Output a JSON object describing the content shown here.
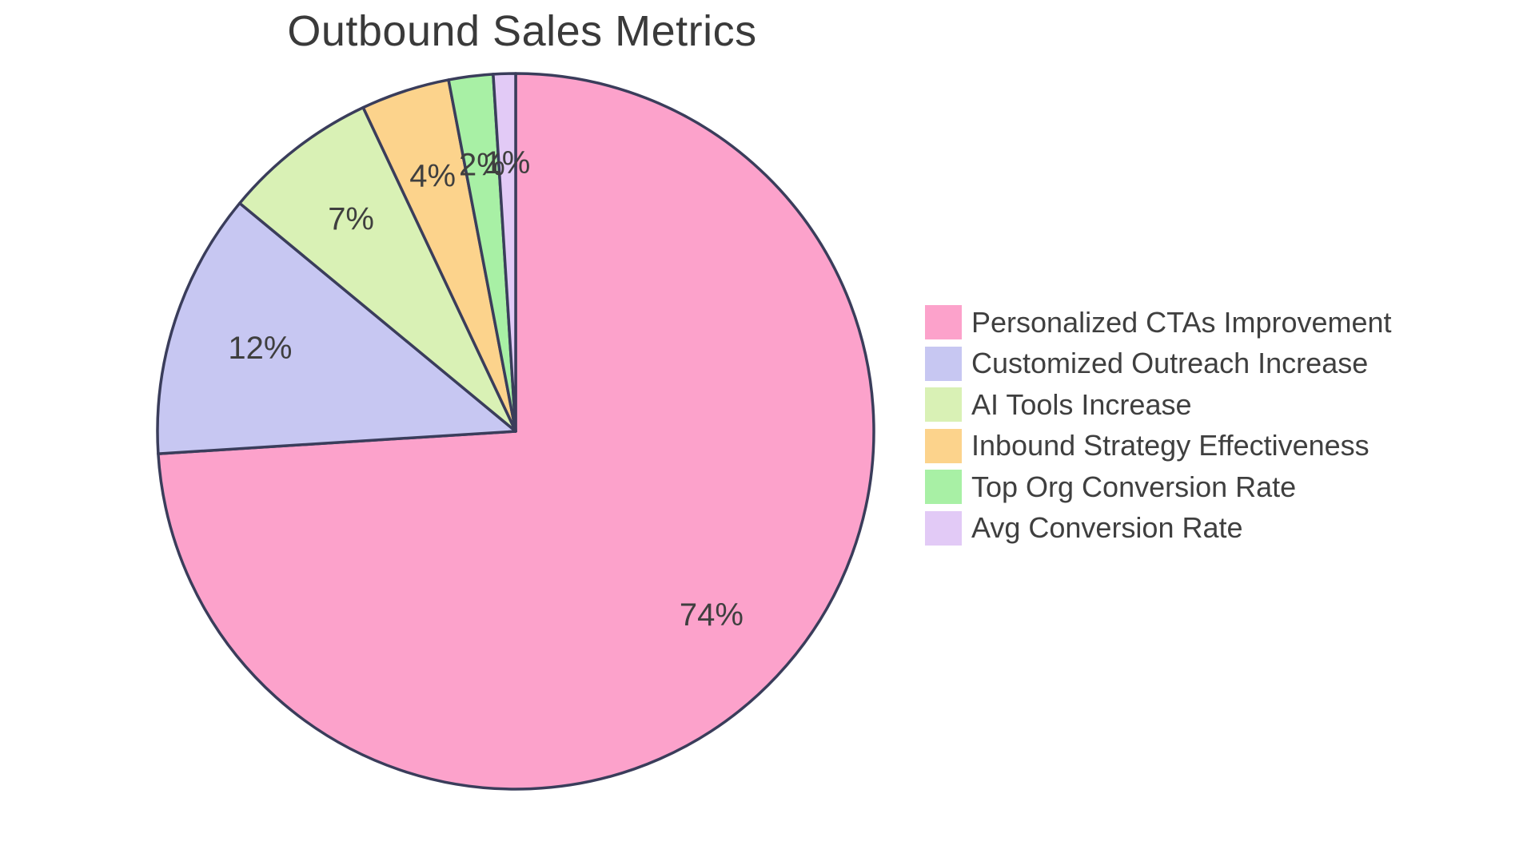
{
  "title": "Outbound Sales Metrics",
  "chart_data": {
    "type": "pie",
    "title": "Outbound Sales Metrics",
    "labels": [
      "Personalized CTAs Improvement",
      "Customized Outreach Increase",
      "AI Tools Increase",
      "Inbound Strategy Effectiveness",
      "Top Org Conversion Rate",
      "Avg Conversion Rate"
    ],
    "values": [
      74,
      12,
      7,
      4,
      2,
      1
    ],
    "percent_labels": [
      "74%",
      "12%",
      "7%",
      "4%",
      "2%",
      "1%"
    ],
    "colors": [
      "#FCA2CB",
      "#C7C7F2",
      "#D9F1B5",
      "#FCD38C",
      "#A8F0A5",
      "#E2CAF6"
    ],
    "stroke_color": "#3A3D5B",
    "stroke_width": 3.5,
    "start_angle": 90,
    "direction": "clockwise",
    "label_distance": 0.75,
    "legend_position": "right",
    "grid": false
  },
  "layout_colors": {
    "background": "#FFFFFF",
    "title_color": "#3A3A3A",
    "label_color": "#3F3F3F"
  }
}
